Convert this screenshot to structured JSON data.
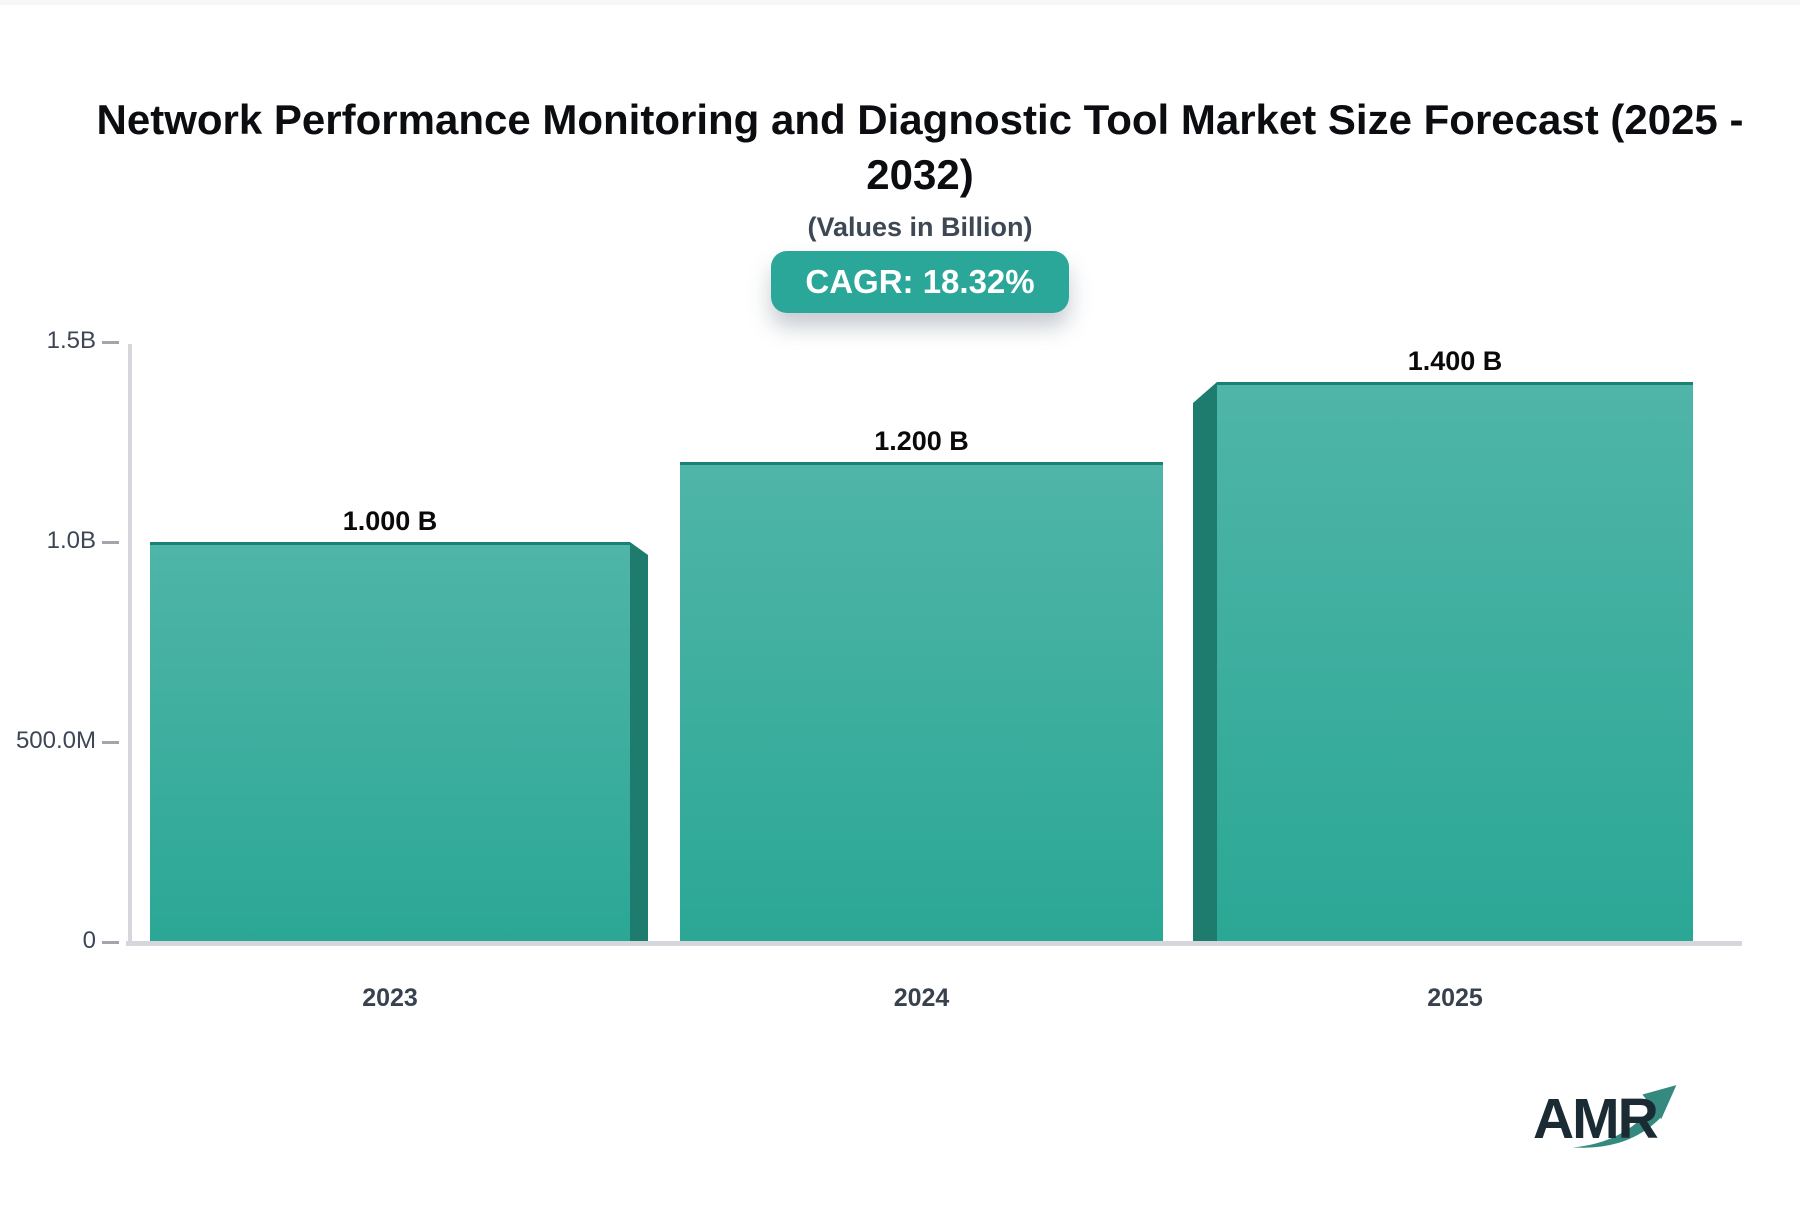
{
  "page": {
    "logo_text": "AMR"
  },
  "colors": {
    "badge_bg": "#2BA79A",
    "bar_gradient_top": "#4FB5A8",
    "bar_gradient_bottom": "#2BA796",
    "bar_side_face": "#1D7C6E",
    "bar_top_border": "#1A8173",
    "axis_line": "#D6D7DD",
    "tick_dash": "#A0A5AE",
    "tick_text": "#3D4656",
    "logo_text": "#1B2B33",
    "logo_arrow": "#35897F"
  },
  "chart_data": {
    "type": "bar",
    "title": "Network Performance Monitoring and Diagnostic Tool Market Size Forecast (2025 - 2032)",
    "subtitle": "(Values in Billion)",
    "annotation": "CAGR: 18.32%",
    "categories": [
      "2023",
      "2024",
      "2025"
    ],
    "values": [
      1.0,
      1.2,
      1.4
    ],
    "value_labels": [
      "1.000 B",
      "1.200 B",
      "1.400 B"
    ],
    "xlabel": "",
    "ylabel": "",
    "ylim": [
      0,
      1.5
    ],
    "yticks": [
      {
        "value": 0,
        "label": "0"
      },
      {
        "value": 0.5,
        "label": "500.0M"
      },
      {
        "value": 1.0,
        "label": "1.0B"
      },
      {
        "value": 1.5,
        "label": "1.5B"
      }
    ],
    "grid": false,
    "legend_position": "none"
  }
}
